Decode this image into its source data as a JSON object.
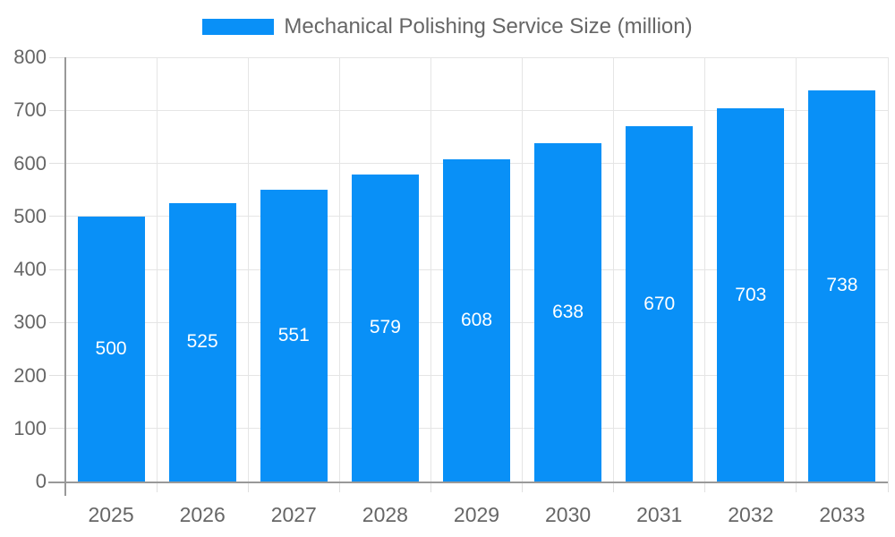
{
  "chart_data": {
    "type": "bar",
    "title": "Mechanical Polishing Service Size (million)",
    "legend": [
      "Mechanical Polishing Service Size (million)"
    ],
    "legend_position": "top-center",
    "categories": [
      "2025",
      "2026",
      "2027",
      "2028",
      "2029",
      "2030",
      "2031",
      "2032",
      "2033"
    ],
    "series": [
      {
        "name": "Mechanical Polishing Service Size (million)",
        "values": [
          500,
          525,
          551,
          579,
          608,
          638,
          670,
          703,
          738
        ]
      }
    ],
    "bar_value_labels": [
      "500",
      "525",
      "551",
      "579",
      "608",
      "638",
      "670",
      "703",
      "738"
    ],
    "xlabel": "",
    "ylabel": "",
    "ylim": [
      0,
      800
    ],
    "yticks": [
      0,
      100,
      200,
      300,
      400,
      500,
      600,
      700,
      800
    ],
    "grid": true,
    "colors": {
      "bar": "#0990f7",
      "bar_label": "#ffffff",
      "text": "#666666",
      "axis": "#999999",
      "grid": "#e5e5e5",
      "tick": "#e0e0e0",
      "background": "#ffffff"
    }
  }
}
